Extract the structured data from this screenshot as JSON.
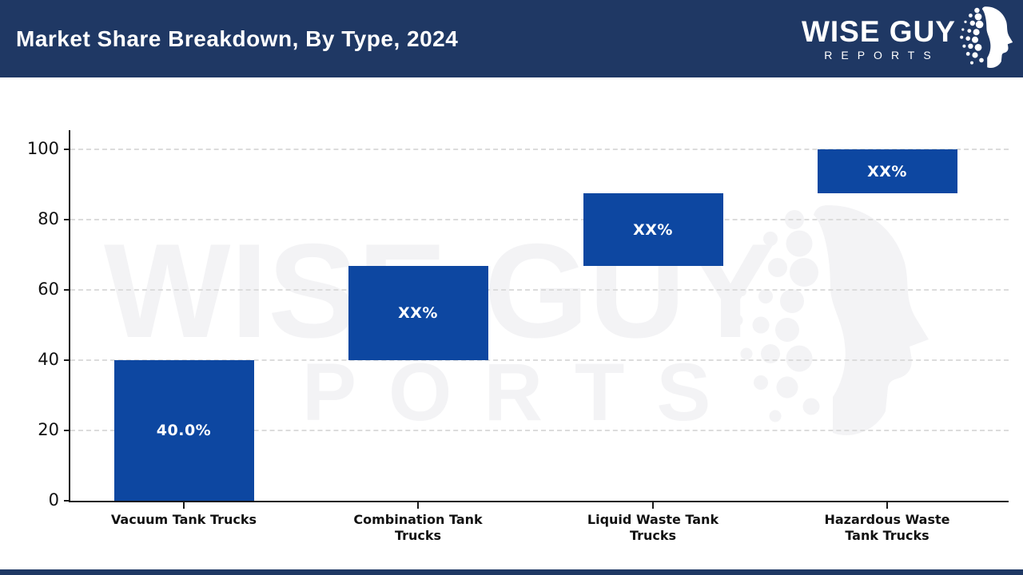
{
  "header": {
    "title": "Market Share Breakdown, By Type, 2024",
    "logo": {
      "line1": "WISE GUY",
      "line2": "REPORTS"
    }
  },
  "watermark": {
    "line1": "WISE GUY",
    "line2": "PORTS"
  },
  "colors": {
    "header_bg": "#1f3864",
    "bar": "#0d47a1",
    "bar_label": "#ffffff",
    "axis": "#1a1a1a",
    "gridline": "#dcdcdc",
    "watermark": "#f3f3f5"
  },
  "chart_data": {
    "type": "bar",
    "subtype": "waterfall-stacked-percentage",
    "title": "Market Share Breakdown, By Type, 2024",
    "categories": [
      "Vacuum Tank Trucks",
      "Combination Tank\nTrucks",
      "Liquid Waste Tank\nTrucks",
      "Hazardous Waste\nTank Trucks"
    ],
    "segments": [
      {
        "category": "Vacuum Tank Trucks",
        "start": 0,
        "end": 40,
        "label": "40.0%"
      },
      {
        "category": "Combination Tank Trucks",
        "start": 40,
        "end": 66.8,
        "label": "XX%"
      },
      {
        "category": "Liquid Waste Tank Trucks",
        "start": 66.8,
        "end": 87.5,
        "label": "XX%"
      },
      {
        "category": "Hazardous Waste Tank Trucks",
        "start": 87.5,
        "end": 100,
        "label": "XX%"
      }
    ],
    "yticks": [
      0,
      20,
      40,
      60,
      80,
      100
    ],
    "ylim": [
      0,
      105
    ],
    "xlabel": "",
    "ylabel": "",
    "grid": "horizontal-dashed",
    "legend": "none"
  }
}
